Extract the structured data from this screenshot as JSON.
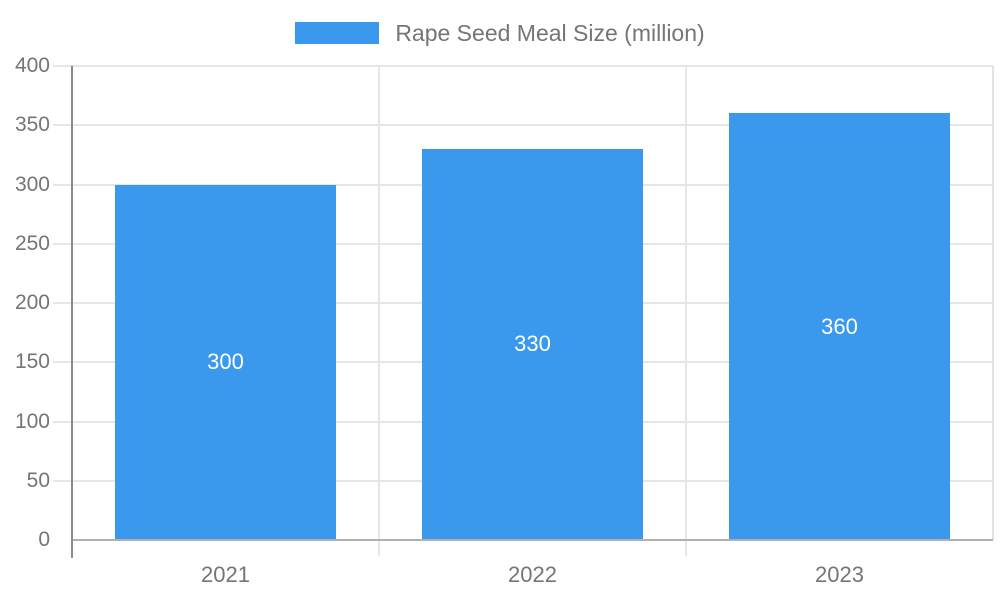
{
  "legend": {
    "label": "Rape Seed Meal Size (million)",
    "swatch_color": "#3A99EC"
  },
  "chart_data": {
    "type": "bar",
    "title": "Rape Seed Meal Size (million)",
    "categories": [
      "2021",
      "2022",
      "2023"
    ],
    "values": [
      300,
      330,
      360
    ],
    "series_name": "Rape Seed Meal Size (million)",
    "xlabel": "",
    "ylabel": "",
    "ylim": [
      0,
      400
    ],
    "yticks": [
      0,
      50,
      100,
      150,
      200,
      250,
      300,
      350,
      400
    ],
    "grid": true,
    "legend_position": "top",
    "bar_color": "#3A99EC",
    "value_label_color": "#ffffff",
    "value_labels_inside": true
  },
  "colors": {
    "gridline": "#e6e6e6",
    "y_axis_line": "#8a8a8a",
    "x_axis_line": "#b0b0b0",
    "right_border": "#e2e2e2",
    "tick_text": "#757575",
    "background": "#ffffff"
  }
}
